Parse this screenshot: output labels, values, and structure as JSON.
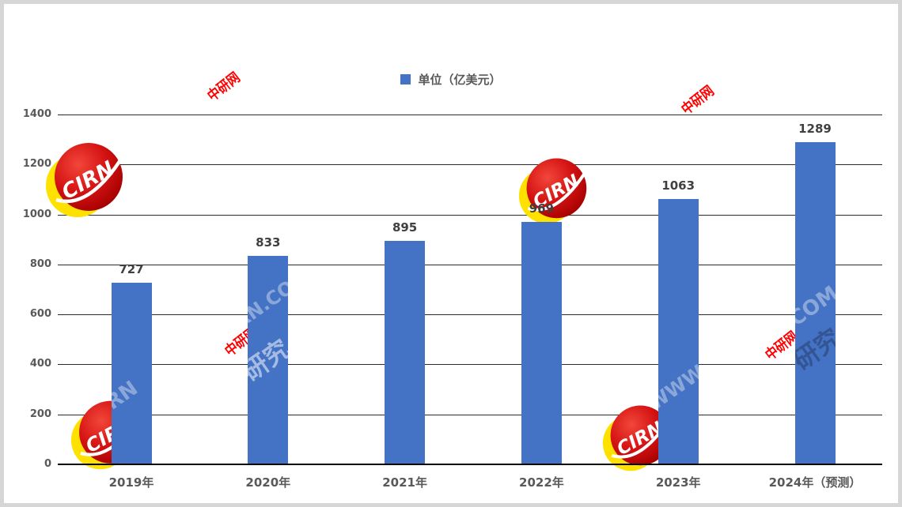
{
  "page": {
    "background": "#ffffff",
    "border_color": "#d6d6d6"
  },
  "legend": {
    "label": "单位（亿美元）",
    "swatch_color": "#4472C4"
  },
  "chart_data": {
    "type": "bar",
    "title": "",
    "legend": [
      "单位（亿美元）"
    ],
    "categories": [
      "2019年",
      "2020年",
      "2021年",
      "2022年",
      "2023年",
      "2024年（预测）"
    ],
    "values": [
      727,
      833,
      895,
      969,
      1063,
      1289
    ],
    "unit_label": "单位（亿美元）",
    "ylim": [
      0,
      1400
    ],
    "yticks": [
      0,
      200,
      400,
      600,
      800,
      1000,
      1200,
      1400
    ],
    "bar_color": "#4472C4",
    "grid": true,
    "legend_position": "top-center",
    "value_labels_shown": true
  },
  "watermarks": {
    "logo_text": "CIRN",
    "stamp_text": "中研网",
    "fragments": {
      "f1": "RN",
      "f2": "RN.CO",
      "f3": "研究",
      "f4": "WWW.",
      "f5": ".COM",
      "f6": "研究"
    }
  }
}
